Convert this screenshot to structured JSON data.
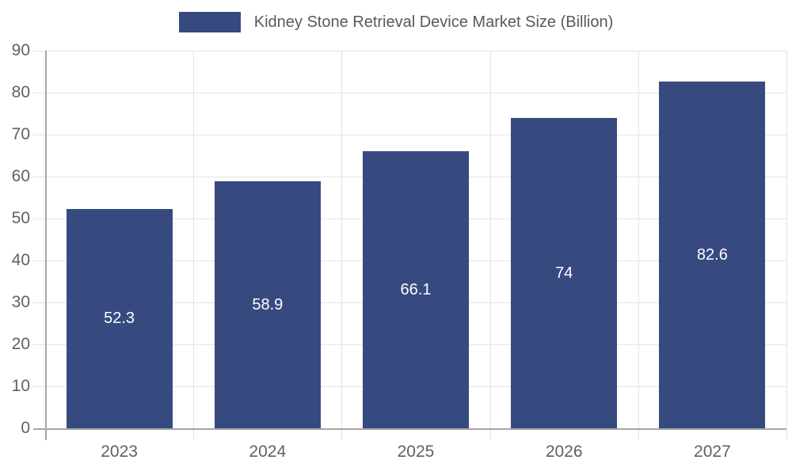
{
  "legend": {
    "label": "Kidney Stone Retrieval Device Market Size (Billion)"
  },
  "chart_data": {
    "type": "bar",
    "title": "Kidney Stone Retrieval Device Market Size (Billion)",
    "categories": [
      "2023",
      "2024",
      "2025",
      "2026",
      "2027"
    ],
    "values": [
      52.3,
      58.9,
      66.1,
      74,
      82.6
    ],
    "data_labels": [
      "52.3",
      "58.9",
      "66.1",
      "74",
      "82.6"
    ],
    "xlabel": "",
    "ylabel": "",
    "ylim": [
      0,
      90
    ],
    "yticks": [
      0,
      10,
      20,
      30,
      40,
      50,
      60,
      70,
      80,
      90
    ],
    "grid": true,
    "legend_position": "top",
    "colors": {
      "bar": "#374a80",
      "gridline": "#e4e4e4",
      "axis_line": "#a6a6a6",
      "axis_text": "#616161",
      "title_text": "#58595b",
      "data_label": "#ffffff"
    }
  }
}
